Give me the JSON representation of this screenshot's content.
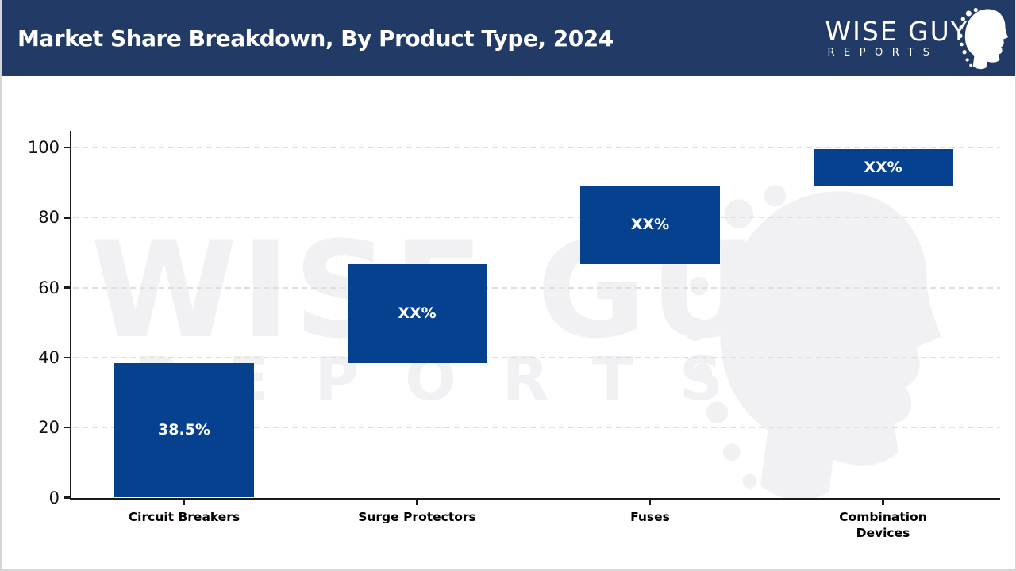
{
  "header": {
    "title": "Market Share Breakdown, By Product Type, 2024",
    "logo": {
      "line1": "WISE GUY",
      "line2": "REPORTS"
    }
  },
  "watermark": {
    "line1": "WISE GUY",
    "line2": "REPORTS"
  },
  "colors": {
    "header_bg": "#213a66",
    "title_text": "#ffffff",
    "bar": "#05418f",
    "bar_label": "#ffffff",
    "gridline": "#dedede",
    "axis": "#1a1a1a",
    "watermark": "#f1f1f4"
  },
  "chart_data": {
    "type": "bar",
    "subtype": "waterfall",
    "title": "Market Share Breakdown, By Product Type, 2024",
    "categories": [
      "Circuit Breakers",
      "Surge Protectors",
      "Fuses",
      "Combination Devices"
    ],
    "segments": [
      {
        "category": "Circuit Breakers",
        "start": 0,
        "end": 38.5,
        "label": "38.5%"
      },
      {
        "category": "Surge Protectors",
        "start": 38.5,
        "end": 66.7,
        "label": "XX%"
      },
      {
        "category": "Fuses",
        "start": 66.7,
        "end": 89.0,
        "label": "XX%"
      },
      {
        "category": "Combination Devices",
        "start": 89.0,
        "end": 99.5,
        "label": "XX%"
      }
    ],
    "yticks": [
      0,
      20,
      40,
      60,
      80,
      100
    ],
    "ylim": [
      0,
      104.5
    ],
    "grid": "dashed horizontal",
    "legend": "none",
    "bar_color": "#05418f",
    "bar_label_color": "#ffffff"
  }
}
